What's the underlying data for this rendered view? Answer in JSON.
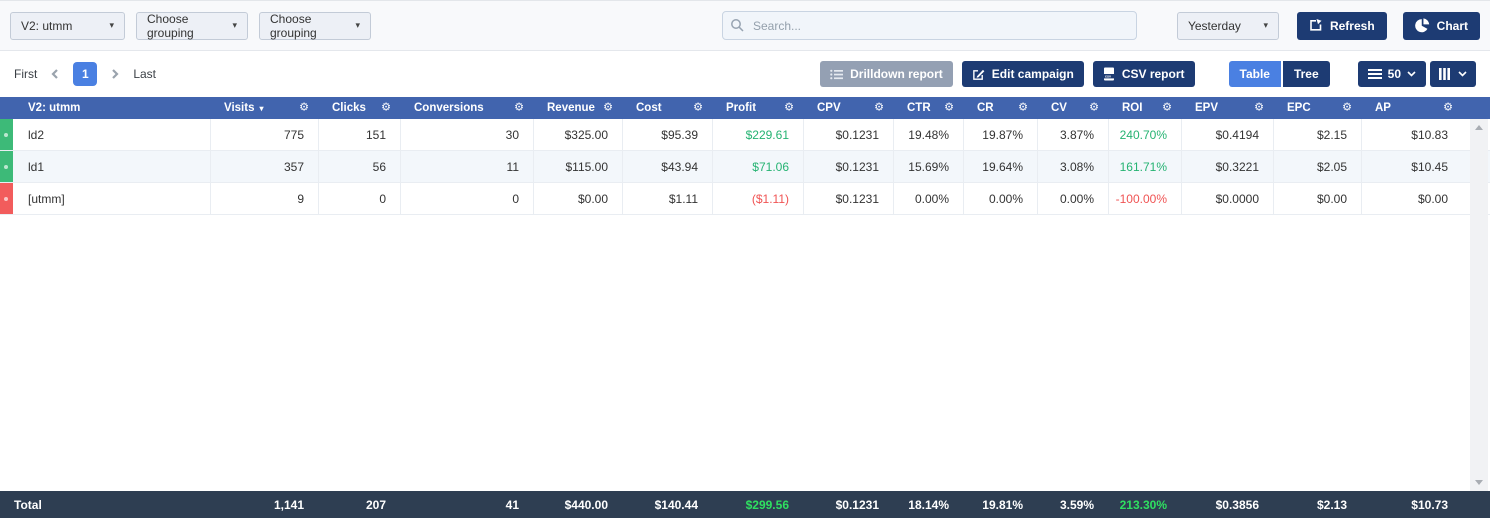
{
  "toolbar": {
    "selects": [
      {
        "value": "V2: utmm"
      },
      {
        "value": "Choose grouping"
      },
      {
        "value": "Choose grouping"
      }
    ],
    "search": {
      "placeholder": "Search..."
    },
    "date_range": {
      "value": "Yesterday"
    },
    "refresh_label": "Refresh",
    "chart_label": "Chart"
  },
  "pagination": {
    "first": "First",
    "page": "1",
    "last": "Last"
  },
  "actions": {
    "drilldown": "Drilldown report",
    "edit": "Edit campaign",
    "csv": "CSV report",
    "table": "Table",
    "tree": "Tree",
    "page_size": "50"
  },
  "icons": {
    "gear": "⚙",
    "caret_down": "▾",
    "sort_caret": "▾"
  },
  "table": {
    "name_header": "V2: utmm",
    "columns": [
      {
        "label": "Visits",
        "sorted": true
      },
      {
        "label": "Clicks"
      },
      {
        "label": "Conversions"
      },
      {
        "label": "Revenue"
      },
      {
        "label": "Cost"
      },
      {
        "label": "Profit"
      },
      {
        "label": "CPV"
      },
      {
        "label": "CTR"
      },
      {
        "label": "CR"
      },
      {
        "label": "CV"
      },
      {
        "label": "ROI"
      },
      {
        "label": "EPV"
      },
      {
        "label": "EPC"
      },
      {
        "label": "AP"
      }
    ],
    "rows": [
      {
        "name": "ld2",
        "indicator": "green",
        "state": "pos",
        "values": [
          "775",
          "151",
          "30",
          "$325.00",
          "$95.39",
          "$229.61",
          "$0.1231",
          "19.48%",
          "19.87%",
          "3.87%",
          "240.70%",
          "$0.4194",
          "$2.15",
          "$10.83"
        ]
      },
      {
        "name": "ld1",
        "indicator": "green",
        "state": "pos",
        "values": [
          "357",
          "56",
          "11",
          "$115.00",
          "$43.94",
          "$71.06",
          "$0.1231",
          "15.69%",
          "19.64%",
          "3.08%",
          "161.71%",
          "$0.3221",
          "$2.05",
          "$10.45"
        ]
      },
      {
        "name": "[utmm]",
        "indicator": "red",
        "state": "neg",
        "values": [
          "9",
          "0",
          "0",
          "$0.00",
          "$1.11",
          "($1.11)",
          "$0.1231",
          "0.00%",
          "0.00%",
          "0.00%",
          "-100.00%",
          "$0.0000",
          "$0.00",
          "$0.00"
        ]
      }
    ],
    "total": {
      "label": "Total",
      "values": [
        "1,141",
        "207",
        "41",
        "$440.00",
        "$140.44",
        "$299.56",
        "$0.1231",
        "18.14%",
        "19.81%",
        "3.59%",
        "213.30%",
        "$0.3856",
        "$2.13",
        "$10.73"
      ]
    }
  },
  "colors": {
    "header_bg": "#4164ae",
    "accent_blue": "#4a80e2",
    "navy_button": "#1d3b73",
    "disabled_button": "#94a0b3",
    "total_bg": "#2e3e52",
    "positive": "#25b372",
    "negative": "#f05454",
    "positive_bright": "#2fe060",
    "indicator_green": "#3dba78",
    "indicator_red": "#f25c5c"
  }
}
